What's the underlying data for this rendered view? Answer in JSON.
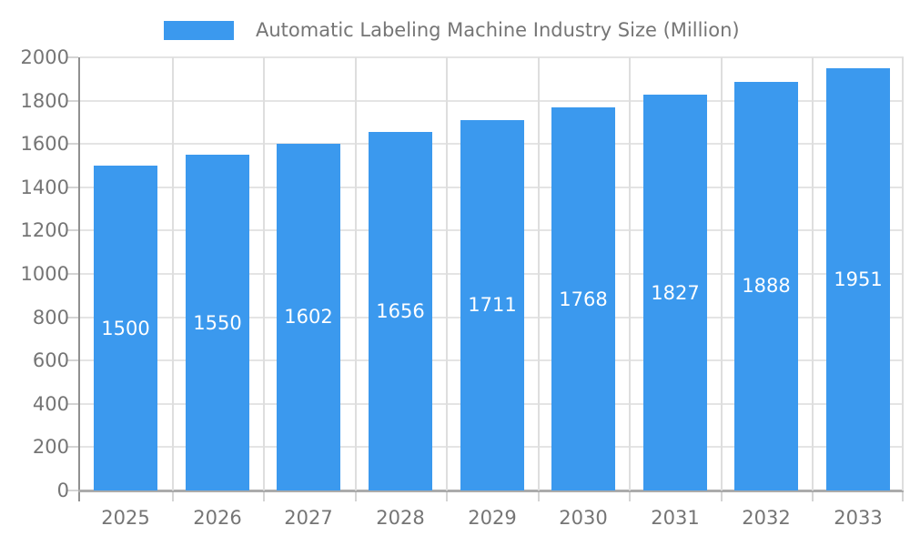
{
  "chart_data": {
    "type": "bar",
    "title": "Automatic Labeling Machine Industry Size (Million)",
    "categories": [
      "2025",
      "2026",
      "2027",
      "2028",
      "2029",
      "2030",
      "2031",
      "2032",
      "2033"
    ],
    "series": [
      {
        "name": "Automatic Labeling Machine Industry Size (Million)",
        "values": [
          1500,
          1550,
          1602,
          1656,
          1711,
          1768,
          1827,
          1888,
          1951
        ]
      }
    ],
    "values": [
      1500,
      1550,
      1602,
      1656,
      1711,
      1768,
      1827,
      1888,
      1951
    ],
    "bar_labels": [
      "1500",
      "1550",
      "1602",
      "1656",
      "1711",
      "1768",
      "1827",
      "1888",
      "1951"
    ],
    "y_tick_labels": [
      "0",
      "200",
      "400",
      "600",
      "800",
      "1000",
      "1200",
      "1400",
      "1600",
      "1800",
      "2000"
    ],
    "xlabel": "",
    "ylabel": "",
    "ylim": [
      0,
      2000
    ],
    "ytick_step": 200,
    "grid": true,
    "legend_position": "top",
    "bar_label_position": "inside-center"
  },
  "legend": {
    "label": "Automatic Labeling Machine Industry Size (Million)"
  },
  "colors": {
    "bar": "#3B99EE",
    "bar_label_text": "#FFFFFF",
    "axis_text": "#757575",
    "legend_text": "#757575",
    "gridline_h": "#E4E4E4",
    "gridline_v": "#DEDEDE",
    "y_axis_line": "#909090",
    "x_axis_line": "#ABABAB",
    "tick_mark": "#D4D4D4",
    "background": "#FFFFFF"
  }
}
